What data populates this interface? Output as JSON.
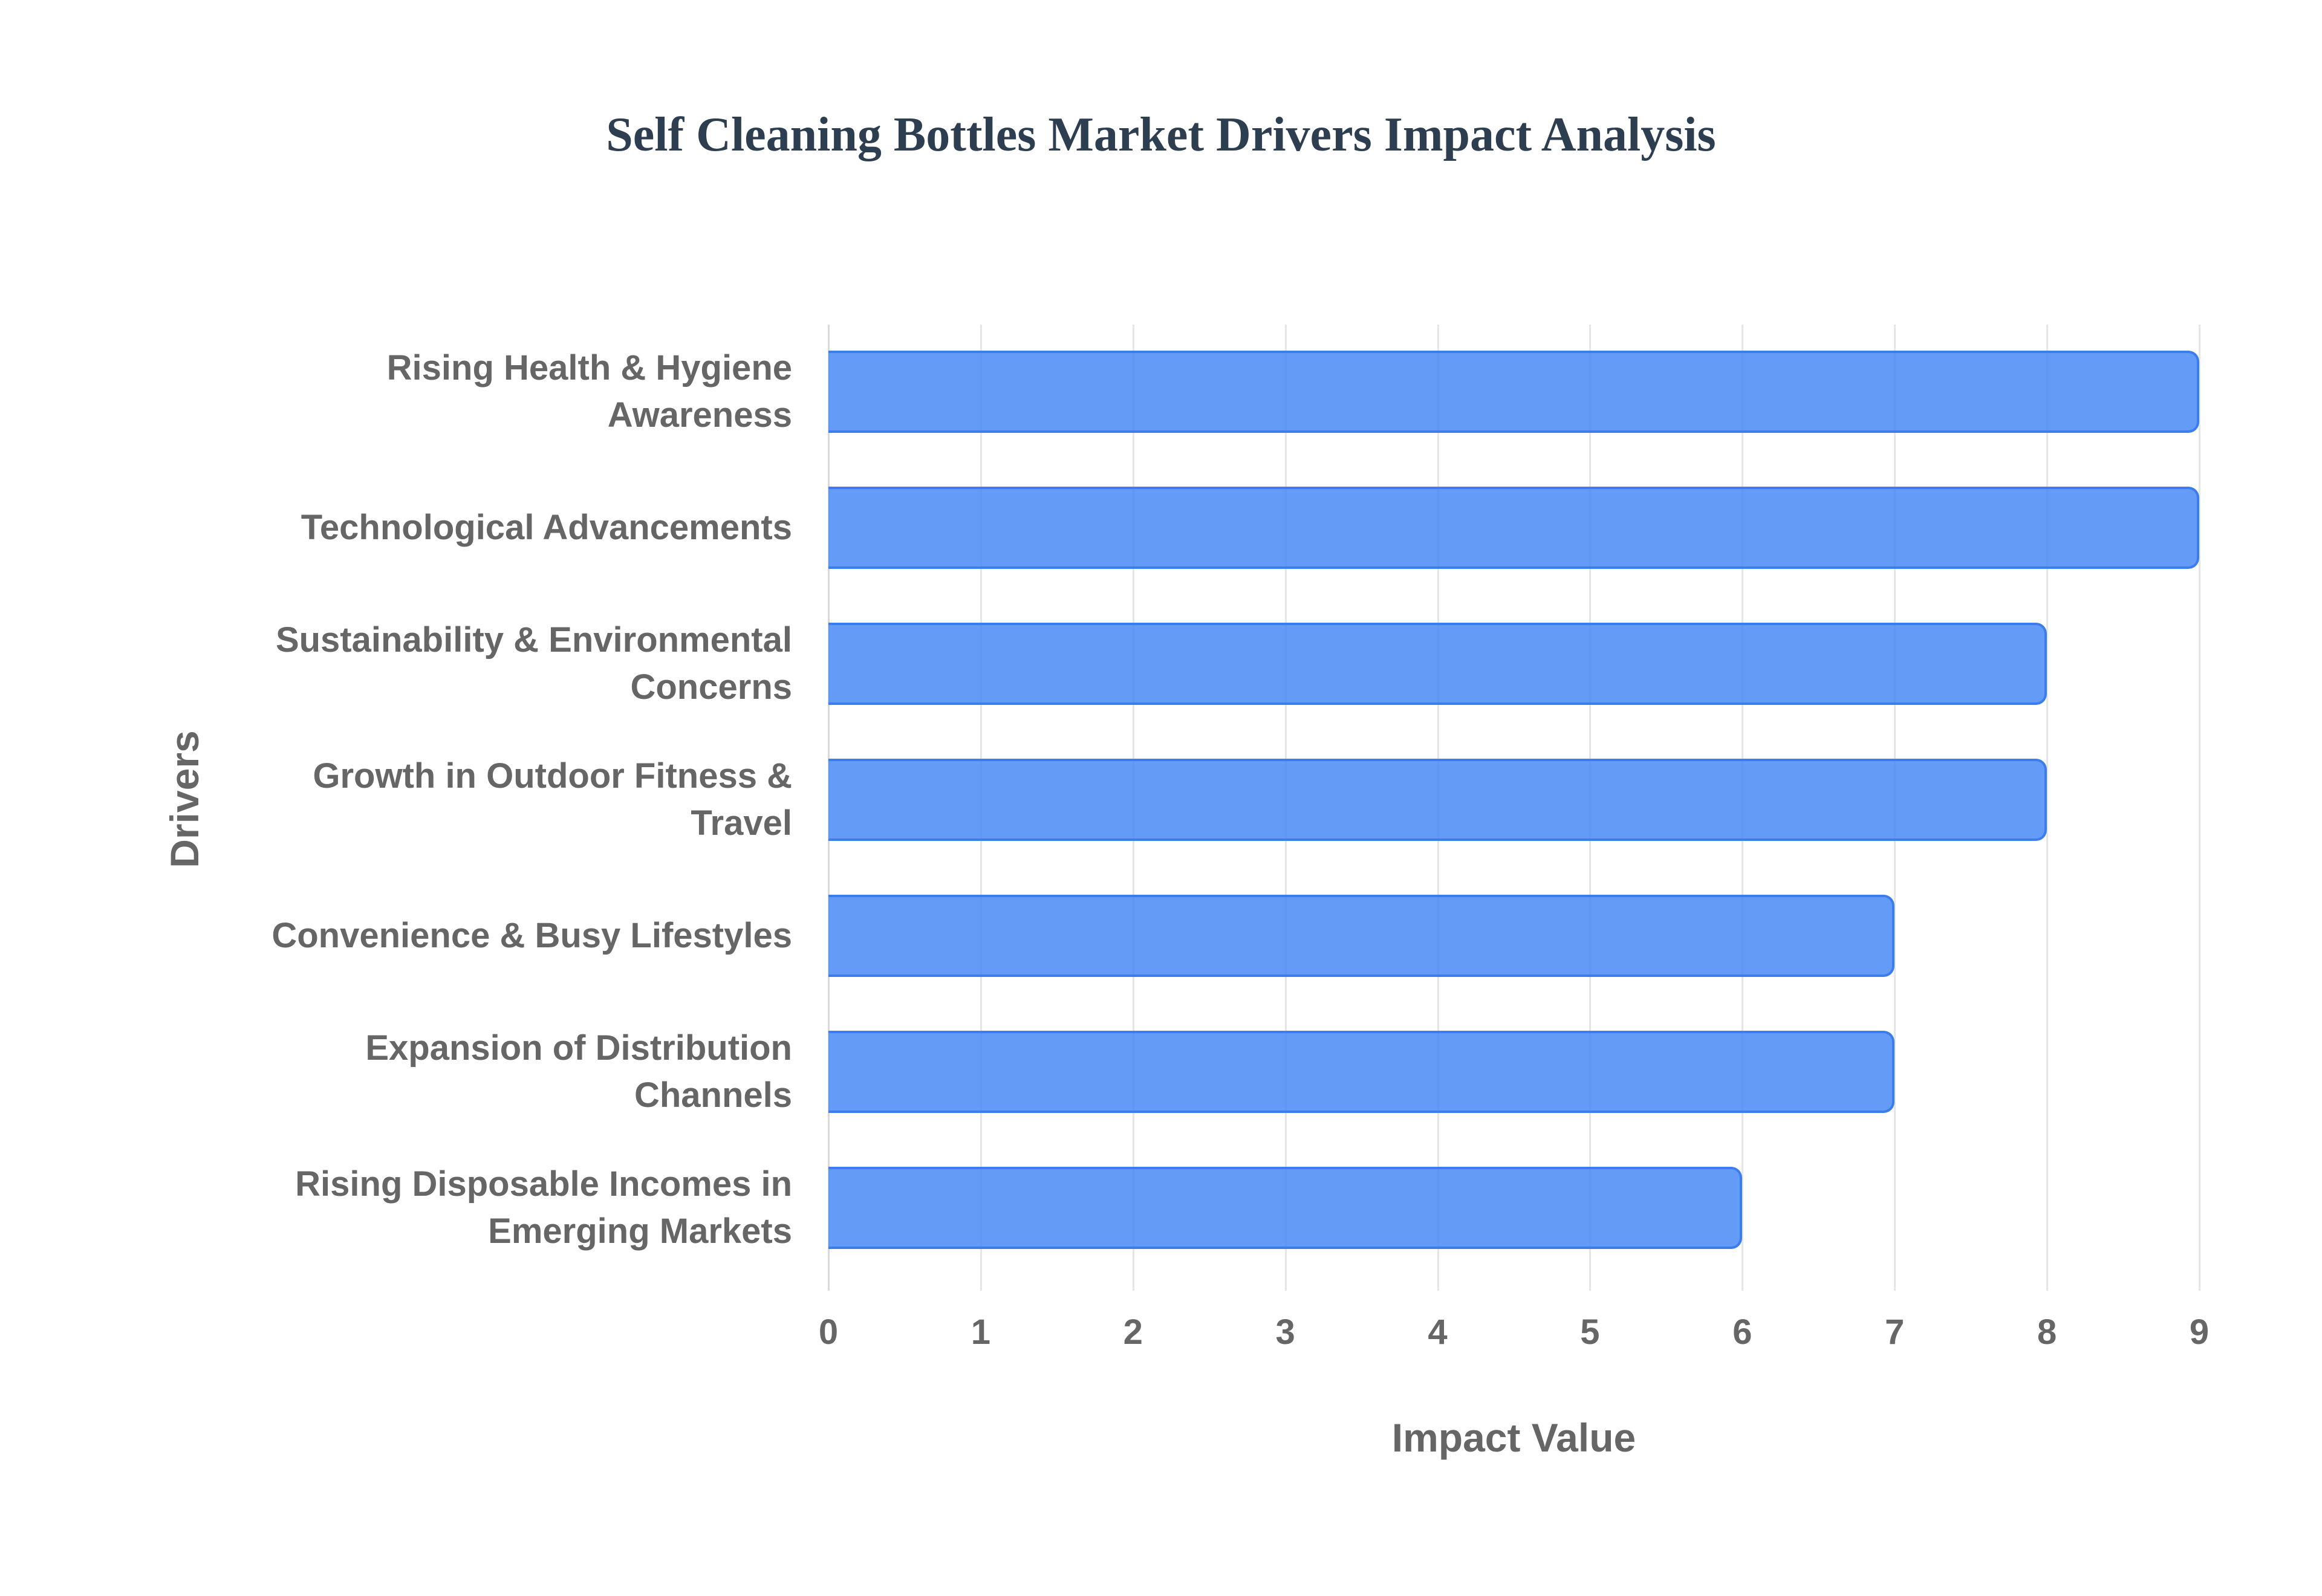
{
  "title": "Self Cleaning Bottles Market Drivers Impact Analysis",
  "chart_data": {
    "type": "bar",
    "orientation": "horizontal",
    "title": "Self Cleaning Bottles Market Drivers Impact Analysis",
    "xlabel": "Impact Value",
    "ylabel": "Drivers",
    "xlim": [
      0,
      9
    ],
    "x_ticks": [
      "0",
      "1",
      "2",
      "3",
      "4",
      "5",
      "6",
      "7",
      "8",
      "9"
    ],
    "grid": true,
    "legend": "none",
    "bar_color": "#4285f4",
    "categories": [
      "Rising Health & Hygiene Awareness",
      "Technological Advancements",
      "Sustainability & Environmental Concerns",
      "Growth in Outdoor Fitness & Travel",
      "Convenience & Busy Lifestyles",
      "Expansion of Distribution Channels",
      "Rising Disposable Incomes in Emerging Markets"
    ],
    "values": [
      9,
      9,
      8,
      8,
      7,
      7,
      6
    ]
  },
  "labels": [
    {
      "line1": "Rising Health & Hygiene",
      "line2": "Awareness"
    },
    {
      "line1": "Technological Advancements",
      "line2": ""
    },
    {
      "line1": "Sustainability & Environmental",
      "line2": "Concerns"
    },
    {
      "line1": "Growth in Outdoor Fitness &",
      "line2": "Travel"
    },
    {
      "line1": "Convenience & Busy Lifestyles",
      "line2": ""
    },
    {
      "line1": "Expansion of Distribution",
      "line2": "Channels"
    },
    {
      "line1": "Rising Disposable Incomes in",
      "line2": "Emerging Markets"
    }
  ]
}
